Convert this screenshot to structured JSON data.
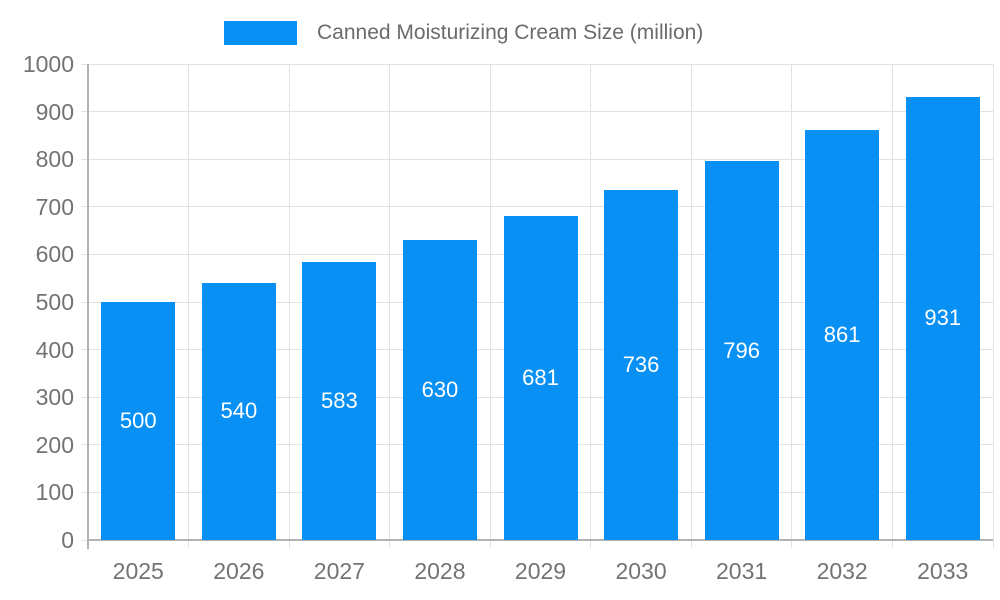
{
  "chart_data": {
    "type": "bar",
    "title": "Canned Moisturizing Cream Size (million)",
    "categories": [
      "2025",
      "2026",
      "2027",
      "2028",
      "2029",
      "2030",
      "2031",
      "2032",
      "2033"
    ],
    "series": [
      {
        "name": "Canned Moisturizing Cream Size (million)",
        "values": [
          500,
          540,
          583,
          630,
          681,
          736,
          796,
          861,
          931
        ]
      }
    ],
    "xlabel": "",
    "ylabel": "",
    "ylim": [
      0,
      1000
    ],
    "ytick_step": 100,
    "grid": true,
    "legend_position": "top-center",
    "bar_labels_visible": true,
    "bar_label_position": "inside-center"
  },
  "legend": {
    "label": "Canned Moisturizing Cream Size (million)"
  },
  "colors": {
    "bar": "#0890f5",
    "grid": "#e2e2e2",
    "axis": "#b3b3b3",
    "tick_text": "#737373",
    "legend_text": "#6b6b6b",
    "bar_label_text": "#ffffff",
    "background": "#ffffff"
  }
}
